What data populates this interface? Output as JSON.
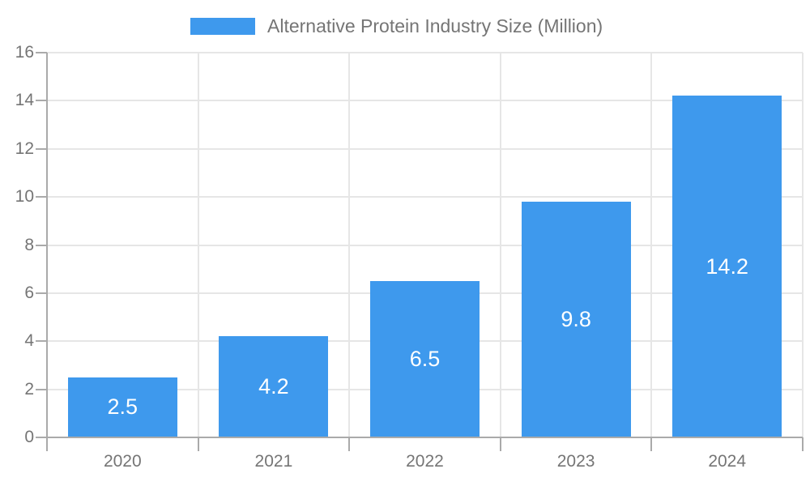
{
  "legend": {
    "label": "Alternative Protein Industry Size (Million)"
  },
  "chart_data": {
    "type": "bar",
    "title": "Alternative Protein Industry Size (Million)",
    "categories": [
      "2020",
      "2021",
      "2022",
      "2023",
      "2024"
    ],
    "values": [
      2.5,
      4.2,
      6.5,
      9.8,
      14.2
    ],
    "bar_labels": [
      "2.5",
      "4.2",
      "6.5",
      "9.8",
      "14.2"
    ],
    "xlabel": "",
    "ylabel": "",
    "ylim": [
      0,
      16
    ],
    "ytick_step": 2,
    "ytick_labels": [
      "0",
      "2",
      "4",
      "6",
      "8",
      "10",
      "12",
      "14",
      "16"
    ],
    "grid": true,
    "legend_position": "top",
    "colors": {
      "bar": "#3E99ED",
      "bar_label_text": "#FFFFFF",
      "tick_text": "#757575",
      "legend_text": "#757575",
      "grid": "#E6E6E6",
      "axis": "#AAAAAA",
      "background": "#FFFFFF"
    }
  }
}
